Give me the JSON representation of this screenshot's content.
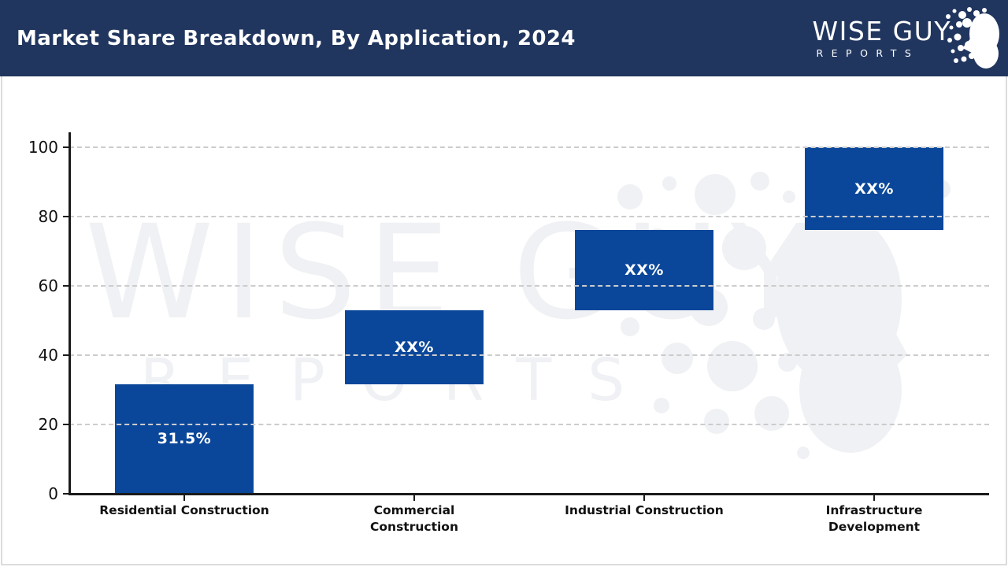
{
  "header": {
    "title": "Market Share Breakdown, By Application, 2024",
    "logo": {
      "line1": "WISE GUY",
      "line2": "REPORTS"
    }
  },
  "watermark": {
    "line1": "WISE GUY",
    "line2": "REPORTS"
  },
  "chart_data": {
    "type": "bar",
    "subtype": "floating-segment-waterfall",
    "title": "Market Share Breakdown, By Application, 2024",
    "categories": [
      "Residential Construction",
      "Commercial Construction",
      "Industrial Construction",
      "Infrastructure Development"
    ],
    "segments": [
      {
        "category": "Residential Construction",
        "start": 0,
        "end": 31.5,
        "label": "31.5%"
      },
      {
        "category": "Commercial Construction",
        "start": 31.5,
        "end": 53,
        "label": "XX%"
      },
      {
        "category": "Industrial Construction",
        "start": 53,
        "end": 76,
        "label": "XX%"
      },
      {
        "category": "Infrastructure Development",
        "start": 76,
        "end": 100,
        "label": "XX%"
      }
    ],
    "ylim": [
      0,
      100
    ],
    "yticks": [
      0,
      20,
      40,
      60,
      80,
      100
    ],
    "ytick_labels": [
      "0",
      "20",
      "40",
      "60",
      "80",
      "100"
    ],
    "xlabel": "",
    "ylabel": "",
    "grid": "horizontal-dashed",
    "legend": "none",
    "bar_value_labels_inside": true
  },
  "colors": {
    "header_bg": "#21365f",
    "bar": "#0a479a",
    "bar_label": "#ffffff",
    "grid": "#cccccc",
    "axis": "#1a1a1a",
    "watermark": "#f0f1f4",
    "frame": "#dcdcdc"
  }
}
